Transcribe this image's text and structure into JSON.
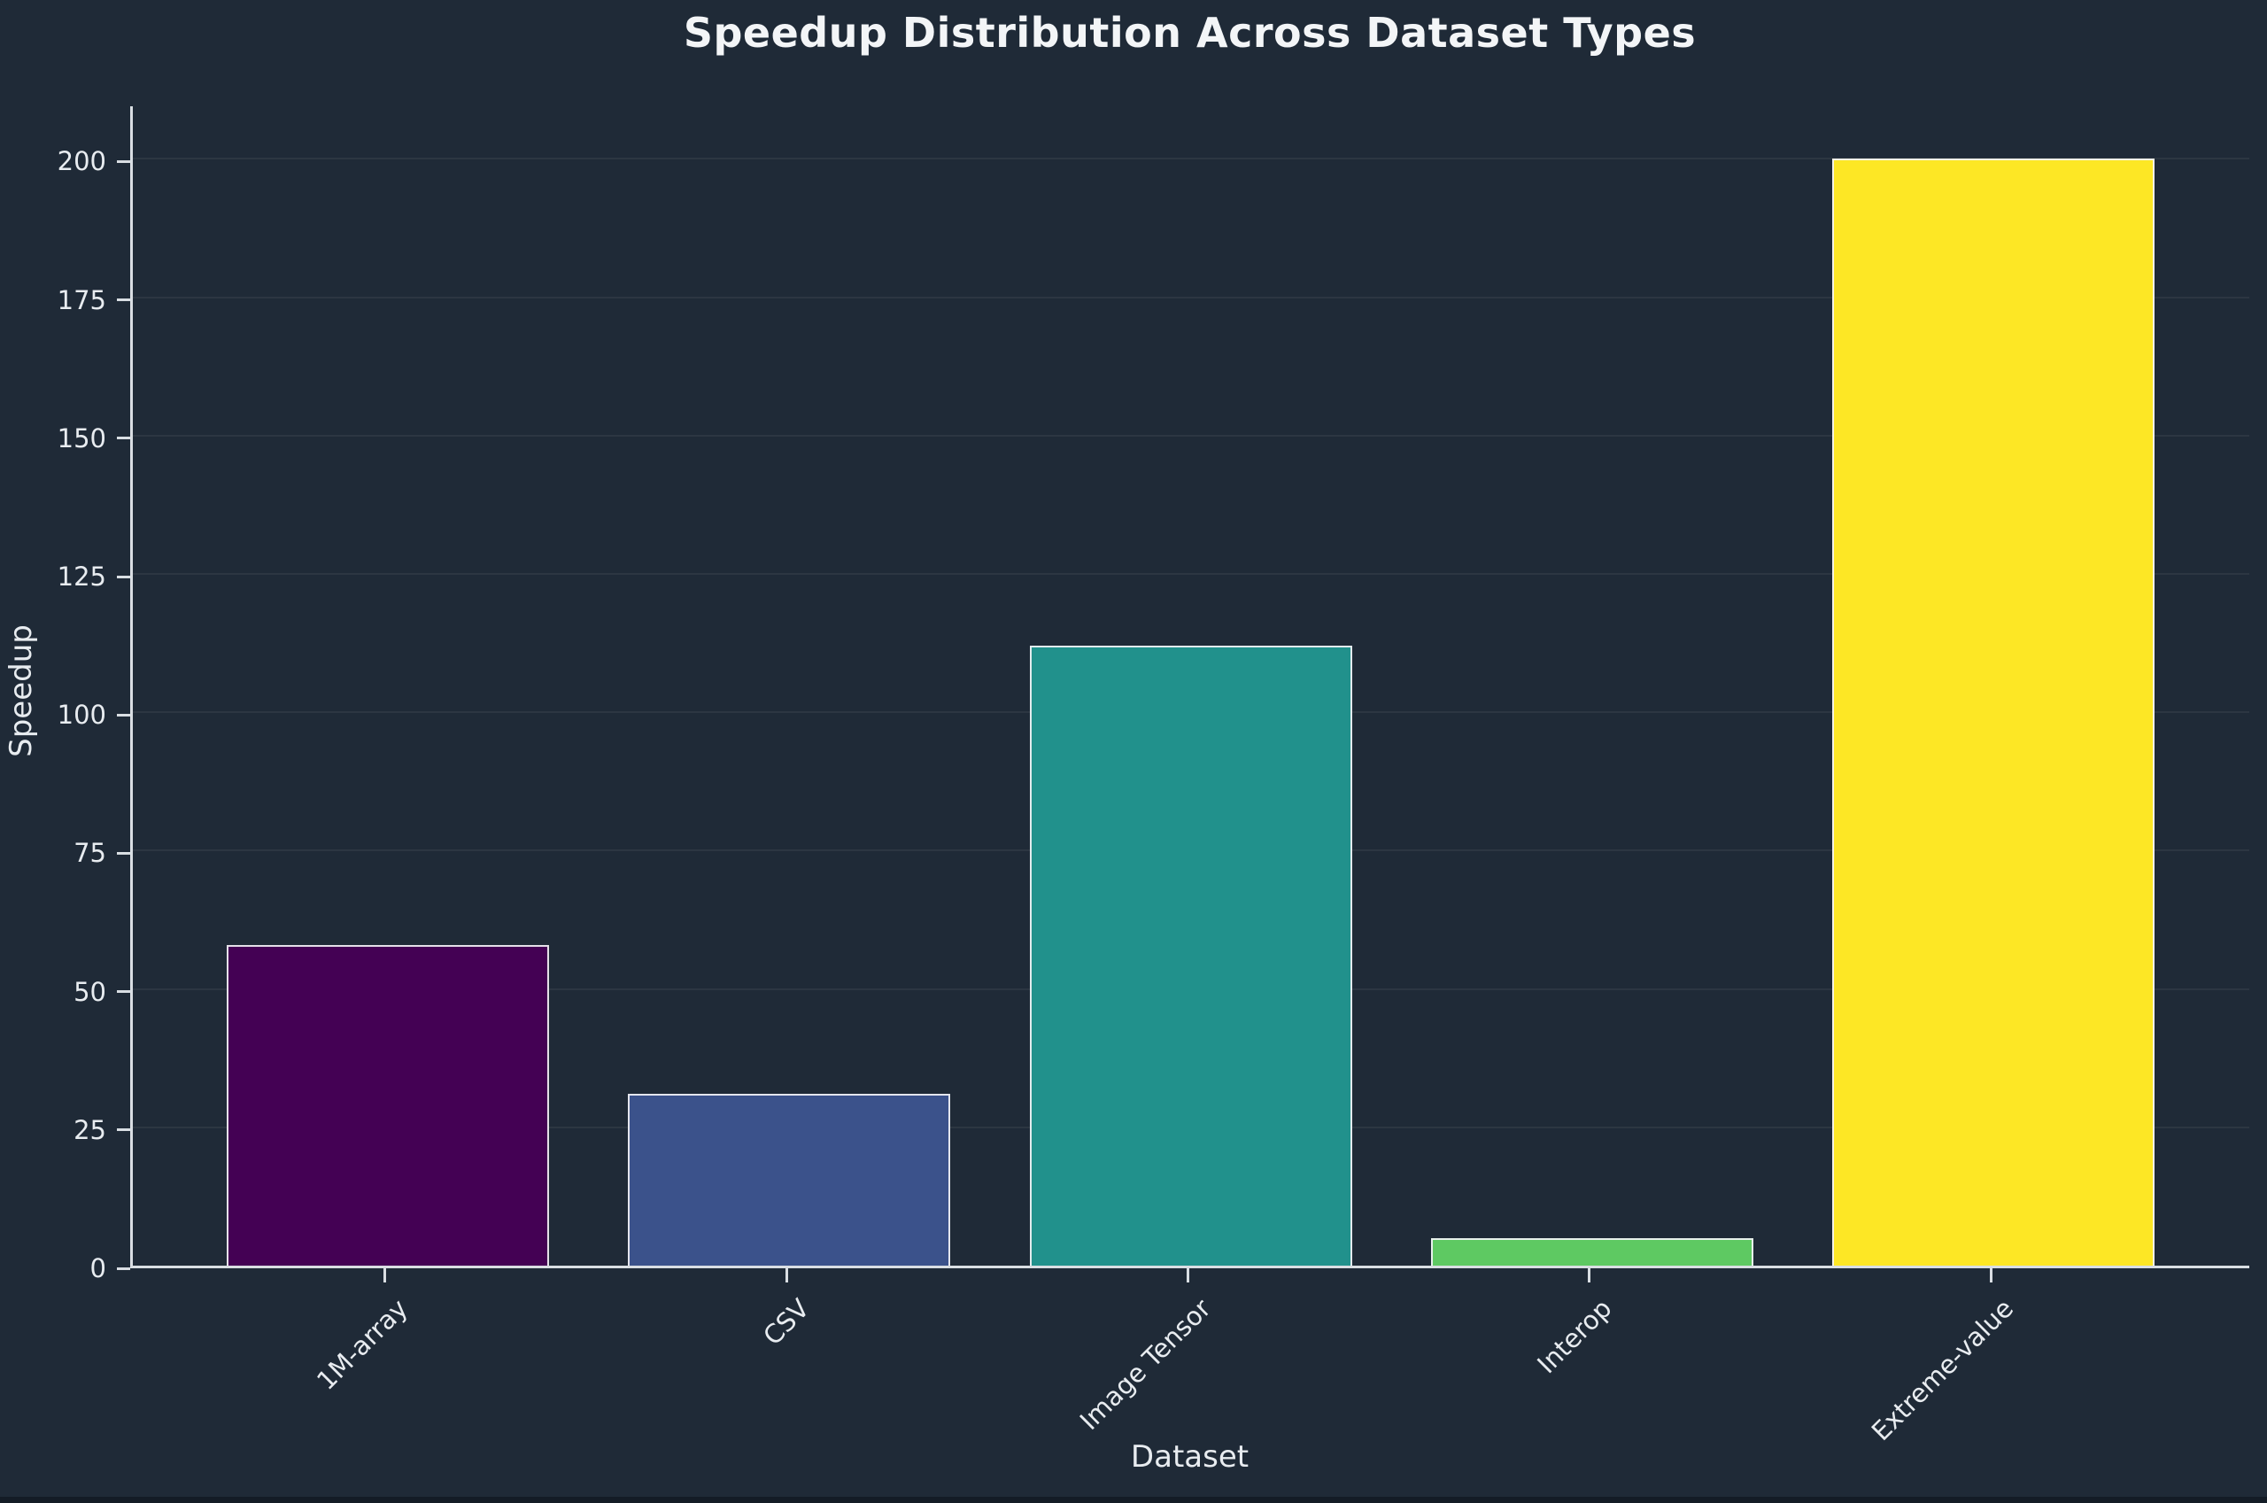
{
  "figure": {
    "title": "Speedup Distribution Across Dataset Types",
    "xlabel": "Dataset",
    "ylabel": "Speedup",
    "background_color": "#1f2a37",
    "text_color": "#e8ecf0",
    "spine_color": "#d9dee3",
    "grid_color": "rgba(255,255,255,0.06)",
    "bar_edge_color": "rgba(243,243,246,0.92)"
  },
  "chart_data": {
    "type": "bar",
    "title": "Speedup Distribution Across Dataset Types",
    "xlabel": "Dataset",
    "ylabel": "Speedup",
    "categories": [
      "1M-array",
      "CSV",
      "Image Tensor",
      "Interop",
      "Extreme-value"
    ],
    "values": [
      58,
      31,
      112,
      5,
      200
    ],
    "bar_colors": [
      "#440154",
      "#3b528b",
      "#21918c",
      "#5ec962",
      "#fde725"
    ],
    "ylim": [
      0,
      210
    ],
    "yticks": [
      0,
      25,
      50,
      75,
      100,
      125,
      150,
      175,
      200
    ],
    "xtick_rotation_deg": 45,
    "grid": "horizontal faint gridlines at each y tick",
    "legend": "none"
  }
}
